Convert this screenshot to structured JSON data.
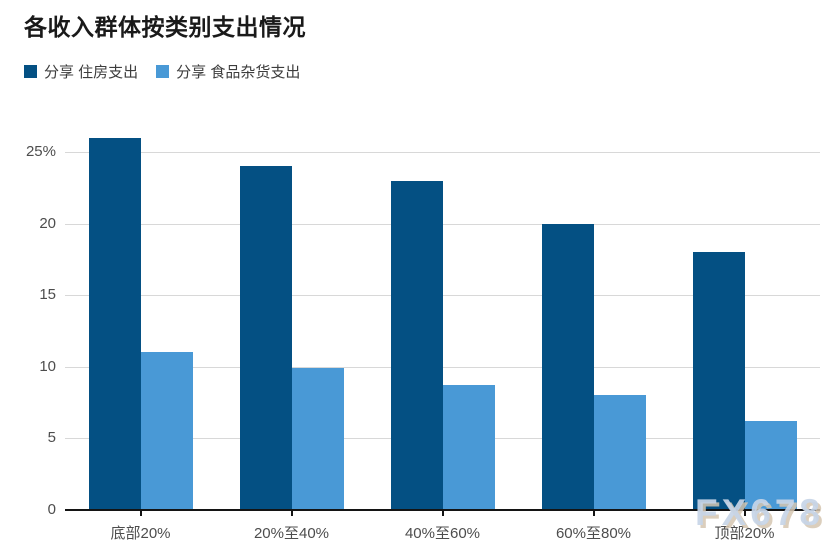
{
  "header": {
    "title": "各收入群体按类别支出情况"
  },
  "colors": {
    "housing": "#045083",
    "groceries": "#4999D6",
    "gridline": "#d8d8d8",
    "axis": "#141414",
    "text": "#4d4d4d",
    "title_text": "#1a1a1a"
  },
  "chart_data": {
    "type": "bar",
    "title": "各收入群体按类别支出情况",
    "categories": [
      "底部20%",
      "20%至40%",
      "40%至60%",
      "60%至80%",
      "顶部20%"
    ],
    "series": [
      {
        "name": "分享 住房支出",
        "color": "#045083",
        "values": [
          26,
          24,
          23,
          20,
          18
        ]
      },
      {
        "name": "分享 食品杂货支出",
        "color": "#4999D6",
        "values": [
          11,
          9.9,
          8.7,
          8,
          6.2
        ]
      }
    ],
    "xlabel": "",
    "ylabel": "",
    "ylim": [
      0,
      26
    ],
    "yticks": [
      {
        "value": 0,
        "label": "0"
      },
      {
        "value": 5,
        "label": "5"
      },
      {
        "value": 10,
        "label": "10"
      },
      {
        "value": 15,
        "label": "15"
      },
      {
        "value": 20,
        "label": "20"
      },
      {
        "value": 25,
        "label": "25%"
      }
    ],
    "grid": true,
    "legend_position": "top-left"
  },
  "watermark": {
    "text": "FX678"
  }
}
